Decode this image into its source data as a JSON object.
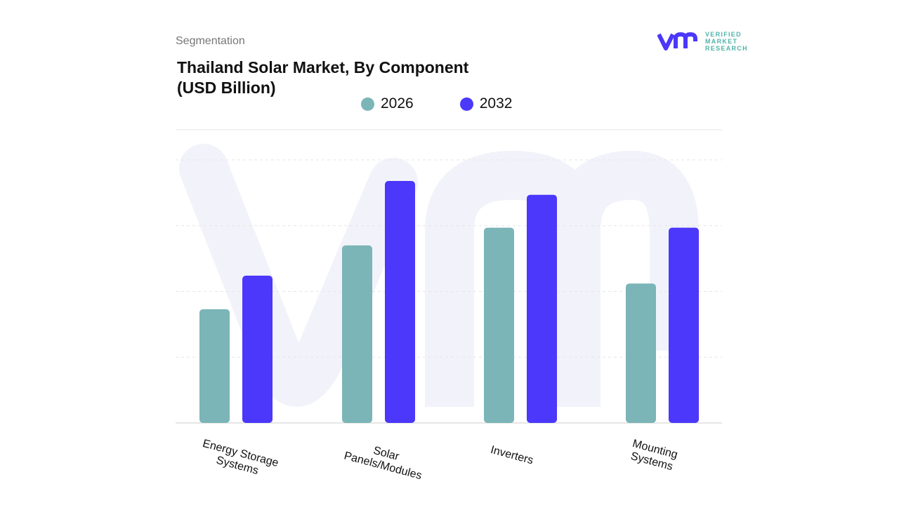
{
  "header": {
    "segment_label": "Segmentation",
    "title": "Thailand Solar Market, By Component (USD Billion)"
  },
  "logo": {
    "text_lines": [
      "VERIFIED",
      "MARKET",
      "RESEARCH"
    ]
  },
  "colors": {
    "s2026": "#7bb5b7",
    "s2032": "#4b38fb",
    "grid": "#e6e6e6",
    "watermark": "#f2f3fa"
  },
  "chart_data": {
    "type": "bar",
    "title": "Thailand Solar Market, By Component (USD Billion)",
    "categories": [
      "Energy Storage Systems",
      "Solar Panels/Modules",
      "Inverters",
      "Mounting Systems"
    ],
    "category_label_lines": [
      [
        "Energy Storage",
        "Systems"
      ],
      [
        "Solar",
        "Panels/Modules"
      ],
      [
        "Inverters"
      ],
      [
        "Mounting",
        "Systems"
      ]
    ],
    "series": [
      {
        "name": "2026",
        "values": [
          1.73,
          2.7,
          2.97,
          2.12
        ]
      },
      {
        "name": "2032",
        "values": [
          2.24,
          3.68,
          3.47,
          2.97
        ]
      }
    ],
    "ylim": [
      0,
      4
    ],
    "y_ticks_printed": false,
    "grid": true,
    "legend_position": "top"
  }
}
